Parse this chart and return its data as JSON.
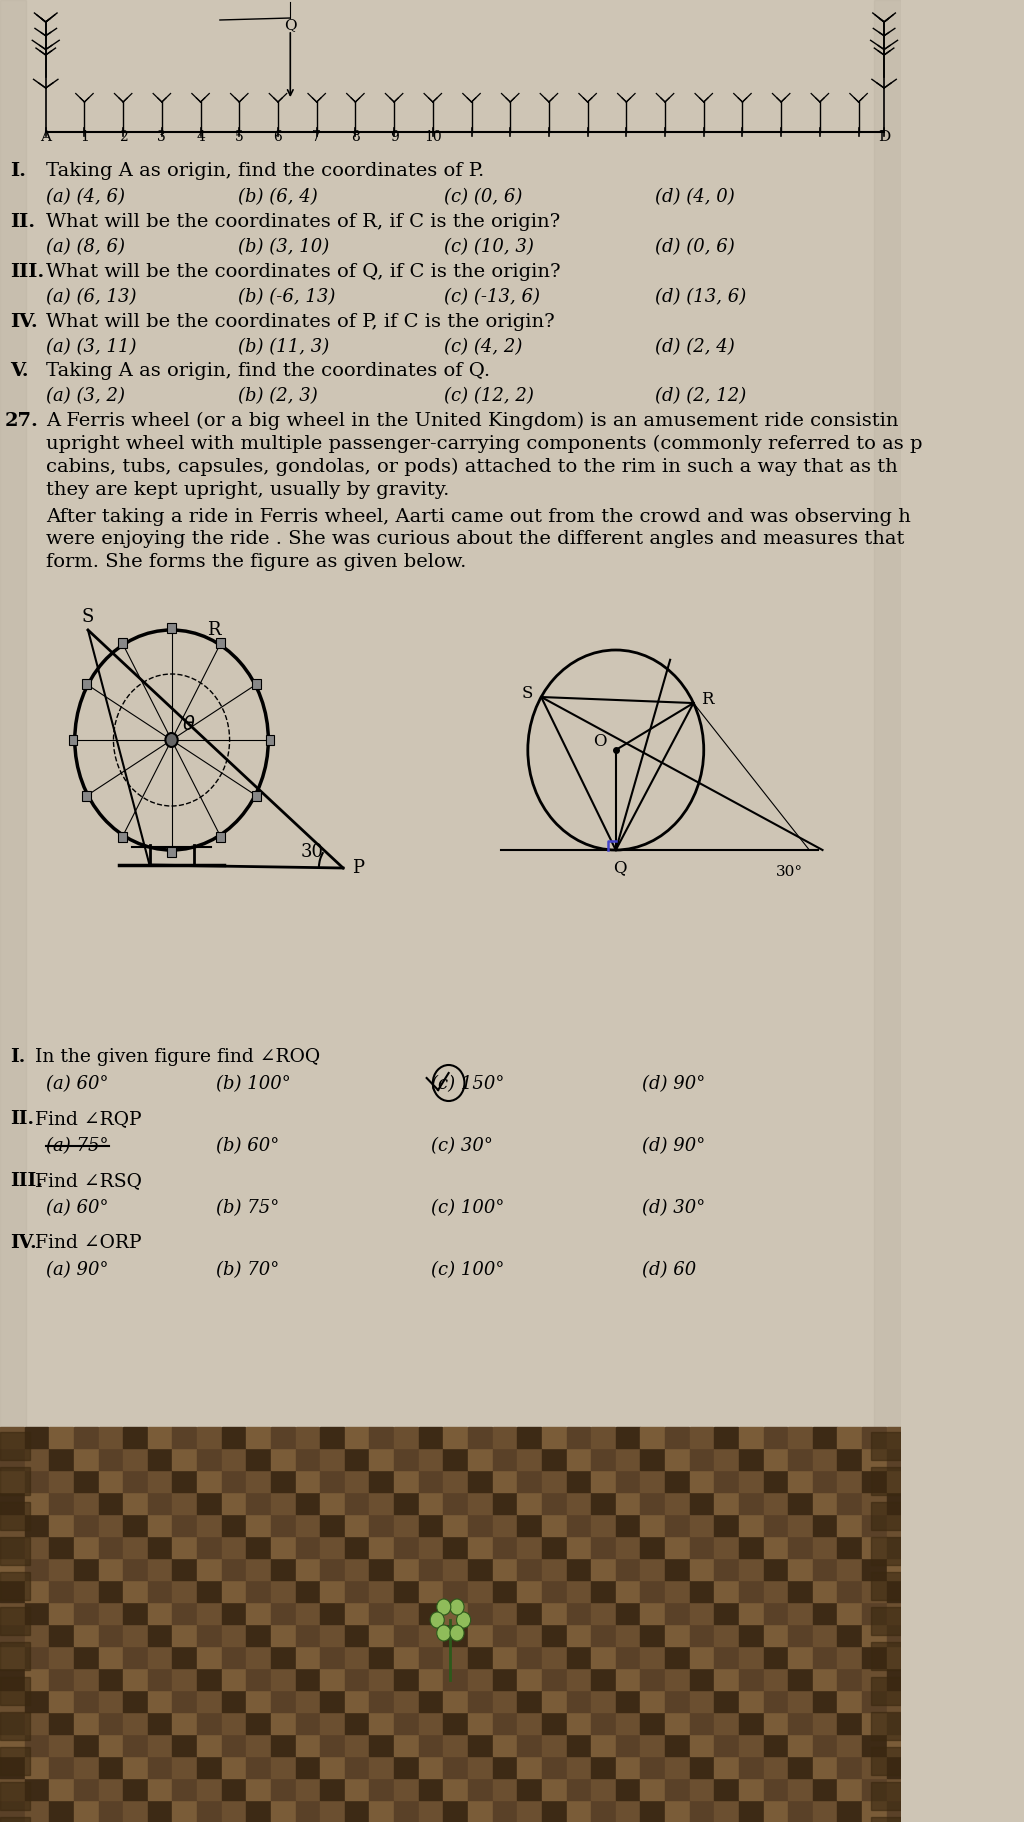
{
  "bg_color": "#cec5b5",
  "q1_text": "Taking A as origin, find the coordinates of P.",
  "q1_opts": [
    [
      "(a)",
      "(4, 6)"
    ],
    [
      "(b)",
      "(6, 4)"
    ],
    [
      "(c)",
      "(0, 6)"
    ],
    [
      "(d)",
      "(4, 0)"
    ]
  ],
  "q2_text": "What will be the coordinates of R, if C is the origin?",
  "q2_opts": [
    [
      "(a)",
      "(8, 6)"
    ],
    [
      "(b)",
      "(3, 10)"
    ],
    [
      "(c)",
      "(10, 3)"
    ],
    [
      "(d)",
      "(0, 6)"
    ]
  ],
  "q3_text": "What will be the coordinates of Q, if C is the origin?",
  "q3_opts": [
    [
      "(a)",
      "(6, 13)"
    ],
    [
      "(b)",
      "(-6, 13)"
    ],
    [
      "(c)",
      "(-13, 6)"
    ],
    [
      "(d)",
      "(13, 6)"
    ]
  ],
  "q4_text": "What will be the coordinates of P, if C is the origin?",
  "q4_opts": [
    [
      "(a)",
      "(3, 11)"
    ],
    [
      "(b)",
      "(11, 3)"
    ],
    [
      "(c)",
      "(4, 2)"
    ],
    [
      "(d)",
      "(2, 4)"
    ]
  ],
  "q5_text": "Taking A as origin, find the coordinates of Q.",
  "q5_opts": [
    [
      "(a)",
      "(3, 2)"
    ],
    [
      "(b)",
      "(2, 3)"
    ],
    [
      "(c)",
      "(12, 2)"
    ],
    [
      "(d)",
      "(2, 12)"
    ]
  ],
  "q27_lines": [
    "A Ferris wheel (or a big wheel in the United Kingdom) is an amusement ride consistin",
    "upright wheel with multiple passenger-carrying components (commonly referred to as p",
    "cabins, tubs, capsules, gondolas, or pods) attached to the rim in such a way that as th",
    "they are kept upright, usually by gravity.",
    "After taking a ride in Ferris wheel, Aarti came out from the crowd and was observing h",
    "were enjoying the ride . She was curious about the different angles and measures that",
    "form. She forms the figure as given below."
  ],
  "sq1_text": "In the given figure find ∠ROQ",
  "sq1_opts": [
    [
      "(a)",
      "60°"
    ],
    [
      "(b)",
      "100°"
    ],
    [
      "(c)",
      "150°"
    ],
    [
      "(d)",
      "90°"
    ]
  ],
  "sq2_text": "Find ∠RQP",
  "sq2_opts": [
    [
      "(a)",
      "75°"
    ],
    [
      "(b)",
      "60°"
    ],
    [
      "(c)",
      "30°"
    ],
    [
      "(d)",
      "90°"
    ]
  ],
  "sq3_text": "Find ∠RSQ",
  "sq3_opts": [
    [
      "(a)",
      "60°"
    ],
    [
      "(b)",
      "75°"
    ],
    [
      "(c)",
      "100°"
    ],
    [
      "(d)",
      "30°"
    ]
  ],
  "sq4_text": "Find ∠ORP",
  "sq4_opts": [
    [
      "(a)",
      "90°"
    ],
    [
      "(b)",
      "70°"
    ],
    [
      "(c)",
      "100°"
    ],
    [
      "(d)",
      "60"
    ]
  ]
}
